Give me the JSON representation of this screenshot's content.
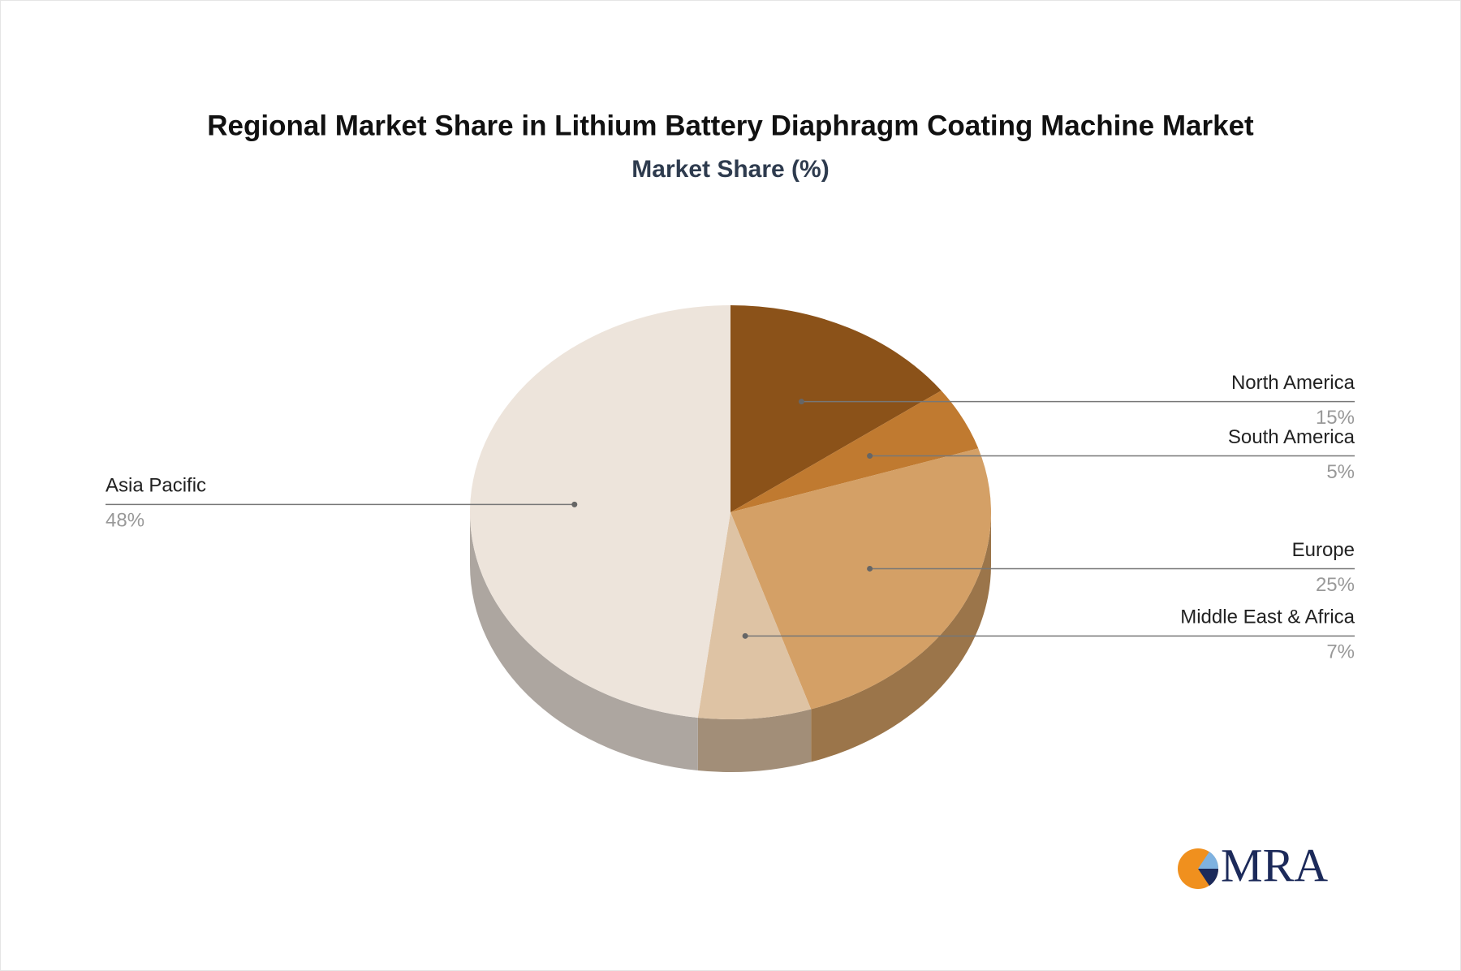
{
  "chart_data": {
    "type": "pie3d",
    "title": "Regional Market Share in Lithium Battery Diaphragm Coating Machine Market",
    "subtitle": "Market Share (%)",
    "categories": [
      "North America",
      "South America",
      "Europe",
      "Middle East & Africa",
      "Asia Pacific"
    ],
    "values": [
      15,
      5,
      25,
      7,
      48
    ],
    "value_labels": [
      "15%",
      "5%",
      "25%",
      "7%",
      "48%"
    ],
    "colors": [
      "#8b5219",
      "#c07a30",
      "#d4a066",
      "#dec3a4",
      "#ede4db"
    ],
    "watermark": "MRA"
  }
}
